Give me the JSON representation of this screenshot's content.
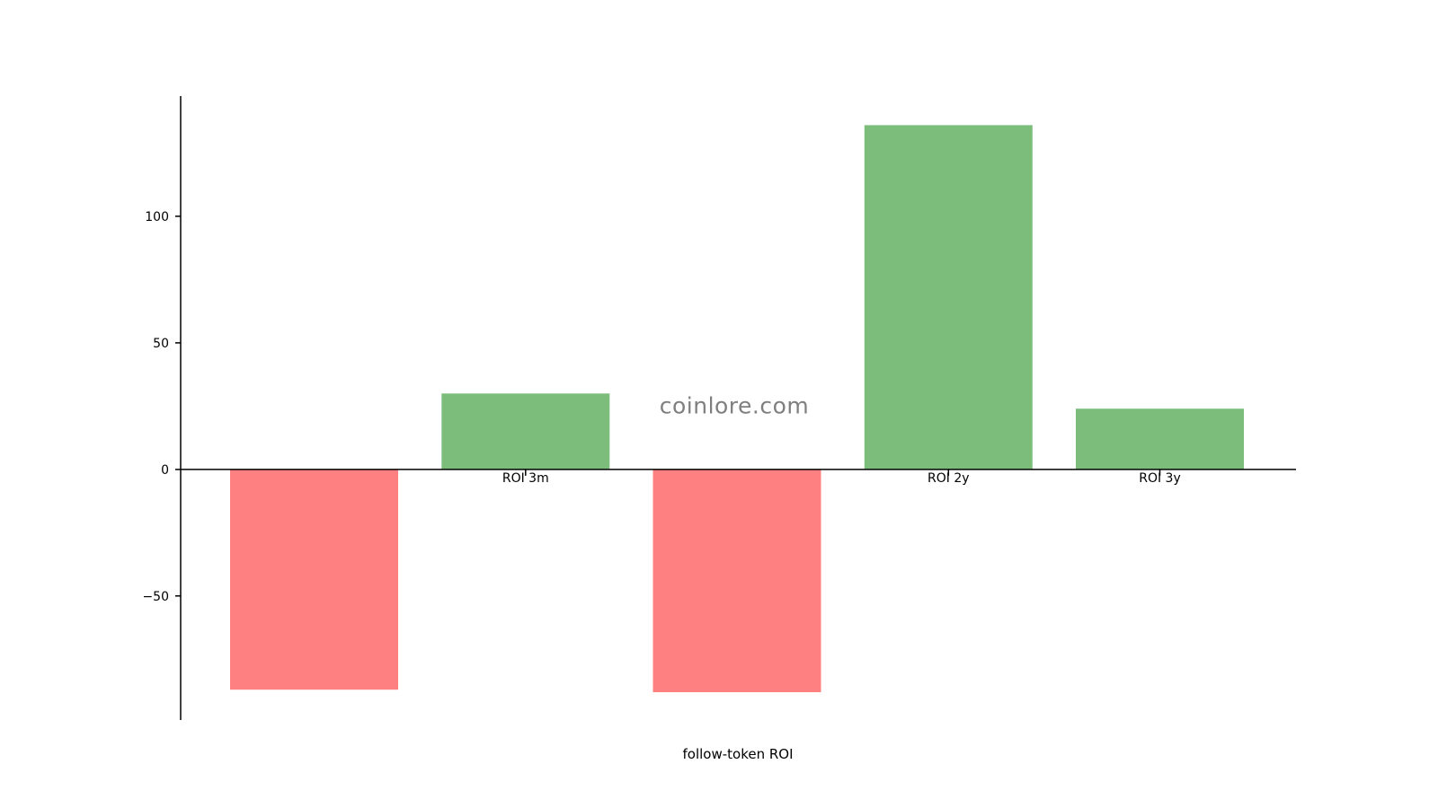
{
  "chart_data": {
    "type": "bar",
    "xlabel": "follow-token ROI",
    "watermark": "coinlore.com",
    "categories": [
      "",
      "ROI 3m",
      "",
      "ROI 2y",
      "ROI 3y"
    ],
    "bar_names": [
      "roi-unlabeled-1",
      "roi-3m",
      "roi-unlabeled-2",
      "roi-2y",
      "roi-3y"
    ],
    "values": [
      -87,
      30,
      -88,
      136,
      24
    ],
    "yticks": [
      {
        "value": 100,
        "label": "100"
      },
      {
        "value": 50,
        "label": "50"
      },
      {
        "value": 0,
        "label": "0"
      },
      {
        "value": -50,
        "label": "−50"
      }
    ],
    "ylim": [
      -99,
      147.5
    ],
    "grid": false,
    "legend": "none",
    "colors": {
      "positive": "#7cbd7c",
      "negative": "#ff8080",
      "axis": "#000000",
      "tick_label": "#000000",
      "watermark": "#7f7f7f"
    }
  }
}
